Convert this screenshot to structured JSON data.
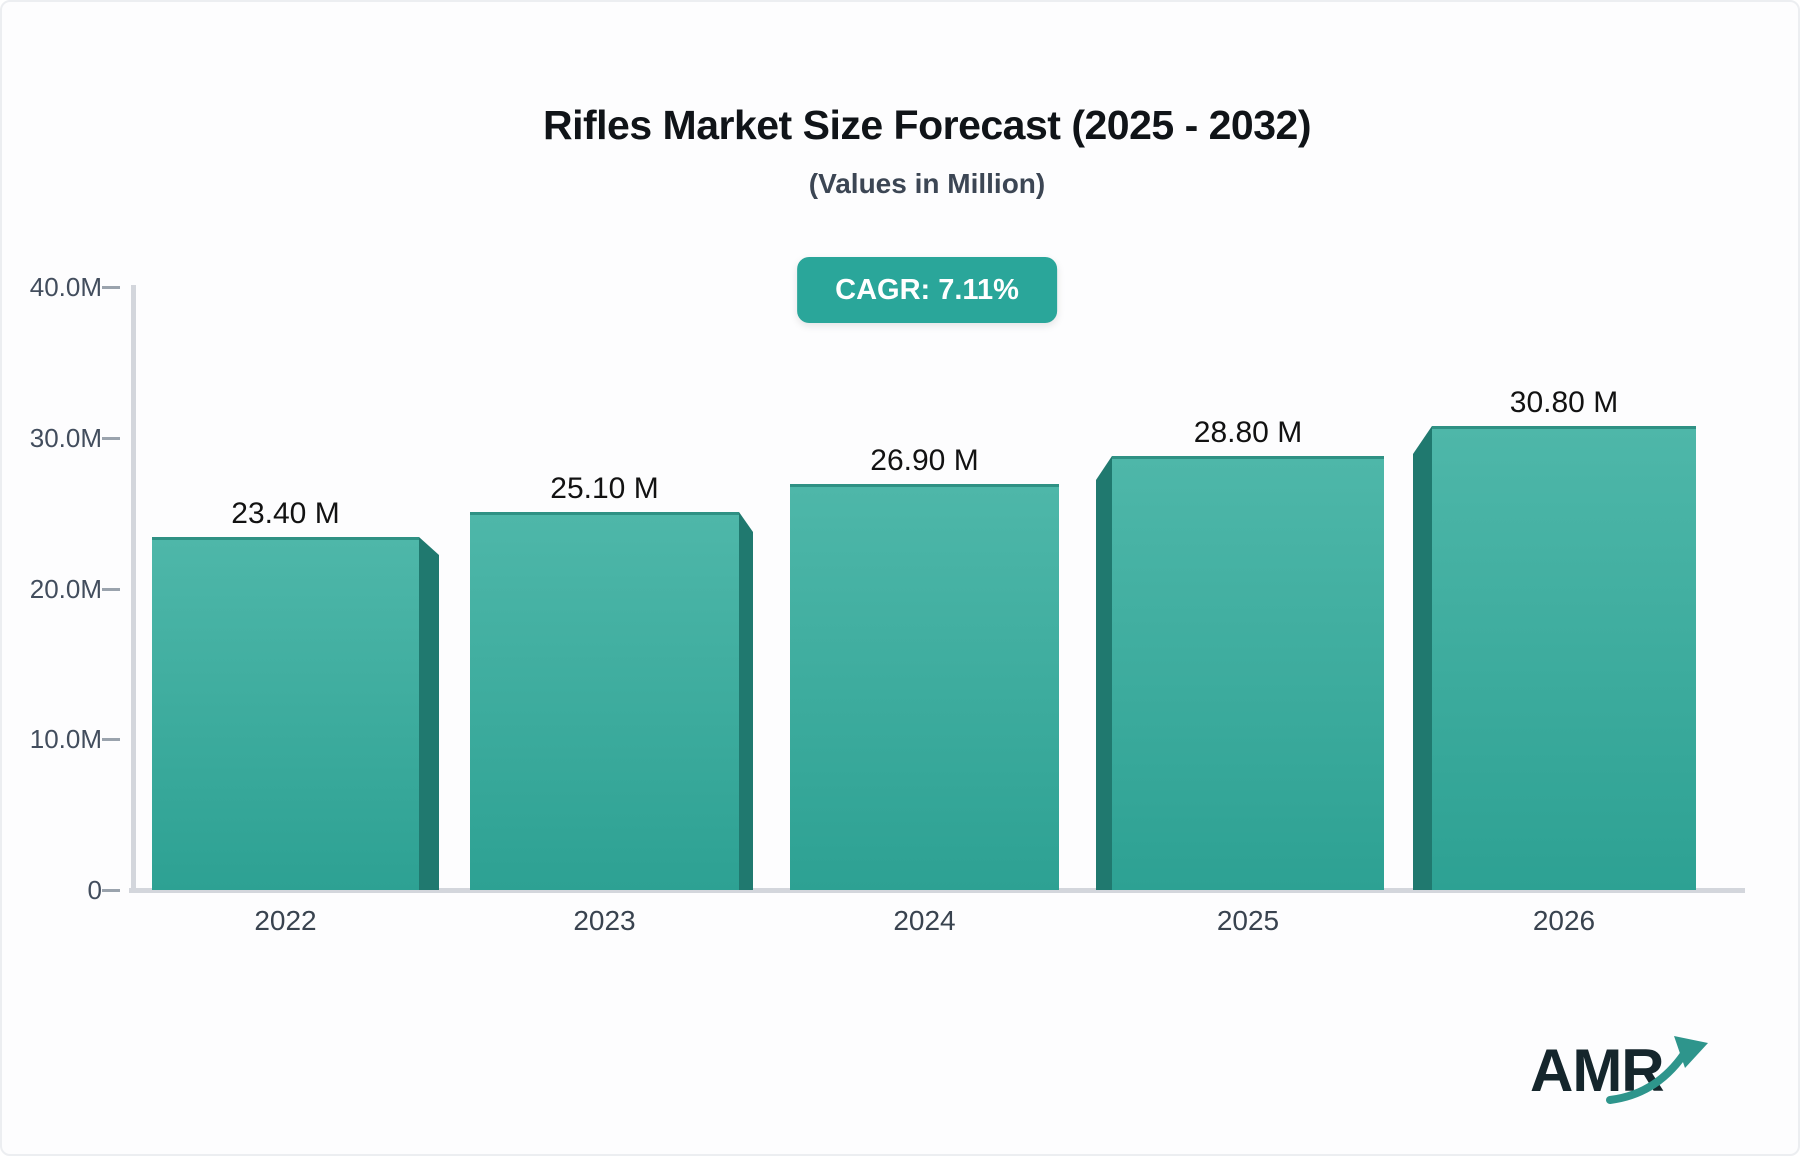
{
  "title": "Rifles Market Size Forecast (2025 - 2032)",
  "subtitle": "(Values in Million)",
  "badge": {
    "label": "CAGR: 7.11%"
  },
  "brand": {
    "logo_text": "AMR"
  },
  "colors": {
    "bar_face_top": "#4eb7a9",
    "bar_face_bottom": "#2da193",
    "bar_side": "#20796f",
    "bar_top_edge": "#2f9184",
    "badge_bg": "#2aa69a",
    "axis_line": "#d3d6dc",
    "tick_dash": "#9aa3ad",
    "axis_label_text": "#424d5d",
    "value_label_text": "#121212",
    "title_text": "#101418",
    "subtitle_text": "#3c4654",
    "logo_text": "#15262c",
    "logo_arrow": "#2e958c"
  },
  "chart_data": {
    "type": "bar",
    "categories": [
      "2022",
      "2023",
      "2024",
      "2025",
      "2026"
    ],
    "values": [
      23.4,
      25.1,
      26.9,
      28.8,
      30.8
    ],
    "value_labels": [
      "23.40 M",
      "25.10 M",
      "26.90 M",
      "28.80 M",
      "30.80 M"
    ],
    "title": "Rifles Market Size Forecast (2025 - 2032)",
    "subtitle": "(Values in Million)",
    "cagr_annotation": "CAGR: 7.11%",
    "xlabel": "",
    "ylabel": "",
    "ylim": [
      0,
      40
    ],
    "ytick_values": [
      40,
      30,
      20,
      10,
      0
    ],
    "ytick_labels": [
      "40.0M",
      "30.0M",
      "20.0M",
      "10.0M",
      "0"
    ],
    "grid": false,
    "legend": false,
    "bar_style": "3d-teal-gradient, perspective side faces toward center"
  }
}
